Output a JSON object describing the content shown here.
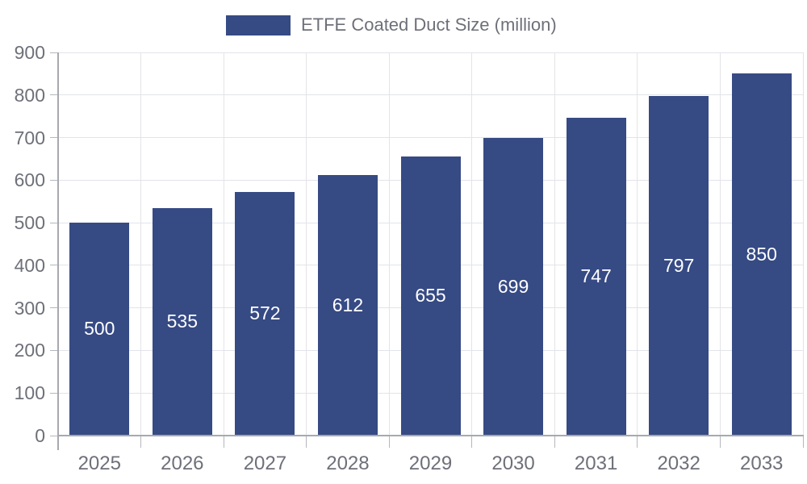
{
  "chart_data": {
    "type": "bar",
    "title": "",
    "categories": [
      "2025",
      "2026",
      "2027",
      "2028",
      "2029",
      "2030",
      "2031",
      "2032",
      "2033"
    ],
    "series": [
      {
        "name": "ETFE Coated Duct Size (million)",
        "values": [
          500,
          535,
          572,
          612,
          655,
          699,
          747,
          797,
          850
        ]
      }
    ],
    "xlabel": "",
    "ylabel": "",
    "ylim": [
      0,
      900
    ],
    "yticks": [
      0,
      100,
      200,
      300,
      400,
      500,
      600,
      700,
      800,
      900
    ],
    "grid": true,
    "legend_position": "top",
    "value_labels_shown": true
  },
  "legend": {
    "label": "ETFE Coated Duct Size (million)"
  },
  "colors": {
    "bar": "#364a84",
    "value_label": "#ffffff",
    "axis_text": "#6e7079",
    "axis_line": "#a7a9ae",
    "gridline": "#e2e4ea"
  }
}
